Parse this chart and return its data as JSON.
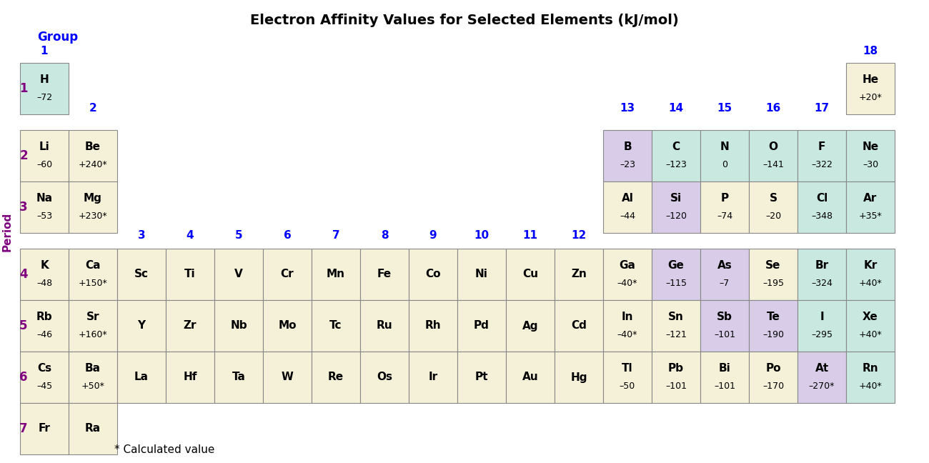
{
  "title": "Electron Affinity Values for Selected Elements (kJ/mol)",
  "title_fontsize": 14,
  "period_label": "Period",
  "group_label": "Group",
  "footnote": "* Calculated value",
  "colors": {
    "light_teal": "#c8e8e0",
    "light_yellow": "#f5f0d8",
    "light_purple": "#d8cce8",
    "border": "#888888",
    "group_color": "#0000ff",
    "period_color": "#800080"
  },
  "elements": [
    {
      "symbol": "H",
      "value": "–72",
      "period": 1,
      "group": 1,
      "color": "light_teal"
    },
    {
      "symbol": "He",
      "value": "+20*",
      "period": 1,
      "group": 18,
      "color": "light_yellow"
    },
    {
      "symbol": "Li",
      "value": "–60",
      "period": 2,
      "group": 1,
      "color": "light_yellow"
    },
    {
      "symbol": "Be",
      "value": "+240*",
      "period": 2,
      "group": 2,
      "color": "light_yellow"
    },
    {
      "symbol": "B",
      "value": "–23",
      "period": 2,
      "group": 13,
      "color": "light_purple"
    },
    {
      "symbol": "C",
      "value": "–123",
      "period": 2,
      "group": 14,
      "color": "light_teal"
    },
    {
      "symbol": "N",
      "value": "0",
      "period": 2,
      "group": 15,
      "color": "light_teal"
    },
    {
      "symbol": "O",
      "value": "–141",
      "period": 2,
      "group": 16,
      "color": "light_teal"
    },
    {
      "symbol": "F",
      "value": "–322",
      "period": 2,
      "group": 17,
      "color": "light_teal"
    },
    {
      "symbol": "Ne",
      "value": "–30",
      "period": 2,
      "group": 18,
      "color": "light_teal"
    },
    {
      "symbol": "Na",
      "value": "–53",
      "period": 3,
      "group": 1,
      "color": "light_yellow"
    },
    {
      "symbol": "Mg",
      "value": "+230*",
      "period": 3,
      "group": 2,
      "color": "light_yellow"
    },
    {
      "symbol": "Al",
      "value": "–44",
      "period": 3,
      "group": 13,
      "color": "light_yellow"
    },
    {
      "symbol": "Si",
      "value": "–120",
      "period": 3,
      "group": 14,
      "color": "light_purple"
    },
    {
      "symbol": "P",
      "value": "–74",
      "period": 3,
      "group": 15,
      "color": "light_yellow"
    },
    {
      "symbol": "S",
      "value": "–20",
      "period": 3,
      "group": 16,
      "color": "light_yellow"
    },
    {
      "symbol": "Cl",
      "value": "–348",
      "period": 3,
      "group": 17,
      "color": "light_teal"
    },
    {
      "symbol": "Ar",
      "value": "+35*",
      "period": 3,
      "group": 18,
      "color": "light_teal"
    },
    {
      "symbol": "K",
      "value": "–48",
      "period": 4,
      "group": 1,
      "color": "light_yellow"
    },
    {
      "symbol": "Ca",
      "value": "+150*",
      "period": 4,
      "group": 2,
      "color": "light_yellow"
    },
    {
      "symbol": "Sc",
      "value": "",
      "period": 4,
      "group": 3,
      "color": "light_yellow"
    },
    {
      "symbol": "Ti",
      "value": "",
      "period": 4,
      "group": 4,
      "color": "light_yellow"
    },
    {
      "symbol": "V",
      "value": "",
      "period": 4,
      "group": 5,
      "color": "light_yellow"
    },
    {
      "symbol": "Cr",
      "value": "",
      "period": 4,
      "group": 6,
      "color": "light_yellow"
    },
    {
      "symbol": "Mn",
      "value": "",
      "period": 4,
      "group": 7,
      "color": "light_yellow"
    },
    {
      "symbol": "Fe",
      "value": "",
      "period": 4,
      "group": 8,
      "color": "light_yellow"
    },
    {
      "symbol": "Co",
      "value": "",
      "period": 4,
      "group": 9,
      "color": "light_yellow"
    },
    {
      "symbol": "Ni",
      "value": "",
      "period": 4,
      "group": 10,
      "color": "light_yellow"
    },
    {
      "symbol": "Cu",
      "value": "",
      "period": 4,
      "group": 11,
      "color": "light_yellow"
    },
    {
      "symbol": "Zn",
      "value": "",
      "period": 4,
      "group": 12,
      "color": "light_yellow"
    },
    {
      "symbol": "Ga",
      "value": "–40*",
      "period": 4,
      "group": 13,
      "color": "light_yellow"
    },
    {
      "symbol": "Ge",
      "value": "–115",
      "period": 4,
      "group": 14,
      "color": "light_purple"
    },
    {
      "symbol": "As",
      "value": "–7",
      "period": 4,
      "group": 15,
      "color": "light_purple"
    },
    {
      "symbol": "Se",
      "value": "–195",
      "period": 4,
      "group": 16,
      "color": "light_yellow"
    },
    {
      "symbol": "Br",
      "value": "–324",
      "period": 4,
      "group": 17,
      "color": "light_teal"
    },
    {
      "symbol": "Kr",
      "value": "+40*",
      "period": 4,
      "group": 18,
      "color": "light_teal"
    },
    {
      "symbol": "Rb",
      "value": "–46",
      "period": 5,
      "group": 1,
      "color": "light_yellow"
    },
    {
      "symbol": "Sr",
      "value": "+160*",
      "period": 5,
      "group": 2,
      "color": "light_yellow"
    },
    {
      "symbol": "Y",
      "value": "",
      "period": 5,
      "group": 3,
      "color": "light_yellow"
    },
    {
      "symbol": "Zr",
      "value": "",
      "period": 5,
      "group": 4,
      "color": "light_yellow"
    },
    {
      "symbol": "Nb",
      "value": "",
      "period": 5,
      "group": 5,
      "color": "light_yellow"
    },
    {
      "symbol": "Mo",
      "value": "",
      "period": 5,
      "group": 6,
      "color": "light_yellow"
    },
    {
      "symbol": "Tc",
      "value": "",
      "period": 5,
      "group": 7,
      "color": "light_yellow"
    },
    {
      "symbol": "Ru",
      "value": "",
      "period": 5,
      "group": 8,
      "color": "light_yellow"
    },
    {
      "symbol": "Rh",
      "value": "",
      "period": 5,
      "group": 9,
      "color": "light_yellow"
    },
    {
      "symbol": "Pd",
      "value": "",
      "period": 5,
      "group": 10,
      "color": "light_yellow"
    },
    {
      "symbol": "Ag",
      "value": "",
      "period": 5,
      "group": 11,
      "color": "light_yellow"
    },
    {
      "symbol": "Cd",
      "value": "",
      "period": 5,
      "group": 12,
      "color": "light_yellow"
    },
    {
      "symbol": "In",
      "value": "–40*",
      "period": 5,
      "group": 13,
      "color": "light_yellow"
    },
    {
      "symbol": "Sn",
      "value": "–121",
      "period": 5,
      "group": 14,
      "color": "light_yellow"
    },
    {
      "symbol": "Sb",
      "value": "–101",
      "period": 5,
      "group": 15,
      "color": "light_purple"
    },
    {
      "symbol": "Te",
      "value": "–190",
      "period": 5,
      "group": 16,
      "color": "light_purple"
    },
    {
      "symbol": "I",
      "value": "–295",
      "period": 5,
      "group": 17,
      "color": "light_teal"
    },
    {
      "symbol": "Xe",
      "value": "+40*",
      "period": 5,
      "group": 18,
      "color": "light_teal"
    },
    {
      "symbol": "Cs",
      "value": "–45",
      "period": 6,
      "group": 1,
      "color": "light_yellow"
    },
    {
      "symbol": "Ba",
      "value": "+50*",
      "period": 6,
      "group": 2,
      "color": "light_yellow"
    },
    {
      "symbol": "La",
      "value": "",
      "period": 6,
      "group": 3,
      "color": "light_yellow"
    },
    {
      "symbol": "Hf",
      "value": "",
      "period": 6,
      "group": 4,
      "color": "light_yellow"
    },
    {
      "symbol": "Ta",
      "value": "",
      "period": 6,
      "group": 5,
      "color": "light_yellow"
    },
    {
      "symbol": "W",
      "value": "",
      "period": 6,
      "group": 6,
      "color": "light_yellow"
    },
    {
      "symbol": "Re",
      "value": "",
      "period": 6,
      "group": 7,
      "color": "light_yellow"
    },
    {
      "symbol": "Os",
      "value": "",
      "period": 6,
      "group": 8,
      "color": "light_yellow"
    },
    {
      "symbol": "Ir",
      "value": "",
      "period": 6,
      "group": 9,
      "color": "light_yellow"
    },
    {
      "symbol": "Pt",
      "value": "",
      "period": 6,
      "group": 10,
      "color": "light_yellow"
    },
    {
      "symbol": "Au",
      "value": "",
      "period": 6,
      "group": 11,
      "color": "light_yellow"
    },
    {
      "symbol": "Hg",
      "value": "",
      "period": 6,
      "group": 12,
      "color": "light_yellow"
    },
    {
      "symbol": "Tl",
      "value": "–50",
      "period": 6,
      "group": 13,
      "color": "light_yellow"
    },
    {
      "symbol": "Pb",
      "value": "–101",
      "period": 6,
      "group": 14,
      "color": "light_yellow"
    },
    {
      "symbol": "Bi",
      "value": "–101",
      "period": 6,
      "group": 15,
      "color": "light_yellow"
    },
    {
      "symbol": "Po",
      "value": "–170",
      "period": 6,
      "group": 16,
      "color": "light_yellow"
    },
    {
      "symbol": "At",
      "value": "–270*",
      "period": 6,
      "group": 17,
      "color": "light_purple"
    },
    {
      "symbol": "Rn",
      "value": "+40*",
      "period": 6,
      "group": 18,
      "color": "light_teal"
    },
    {
      "symbol": "Fr",
      "value": "",
      "period": 7,
      "group": 1,
      "color": "light_yellow"
    },
    {
      "symbol": "Ra",
      "value": "",
      "period": 7,
      "group": 2,
      "color": "light_yellow"
    }
  ],
  "periods_shown": [
    1,
    2,
    3,
    4,
    5,
    6,
    7
  ],
  "group_header_positions": {
    "1": {
      "row": "top"
    },
    "2": {
      "row": "top"
    },
    "3": {
      "row": "mid"
    },
    "4": {
      "row": "mid"
    },
    "5": {
      "row": "mid"
    },
    "6": {
      "row": "mid"
    },
    "7": {
      "row": "mid"
    },
    "8": {
      "row": "mid"
    },
    "9": {
      "row": "mid"
    },
    "10": {
      "row": "mid"
    },
    "11": {
      "row": "mid"
    },
    "12": {
      "row": "mid"
    },
    "13": {
      "row": "top"
    },
    "14": {
      "row": "top"
    },
    "15": {
      "row": "top"
    },
    "16": {
      "row": "top"
    },
    "17": {
      "row": "top"
    },
    "18": {
      "row": "top"
    }
  }
}
